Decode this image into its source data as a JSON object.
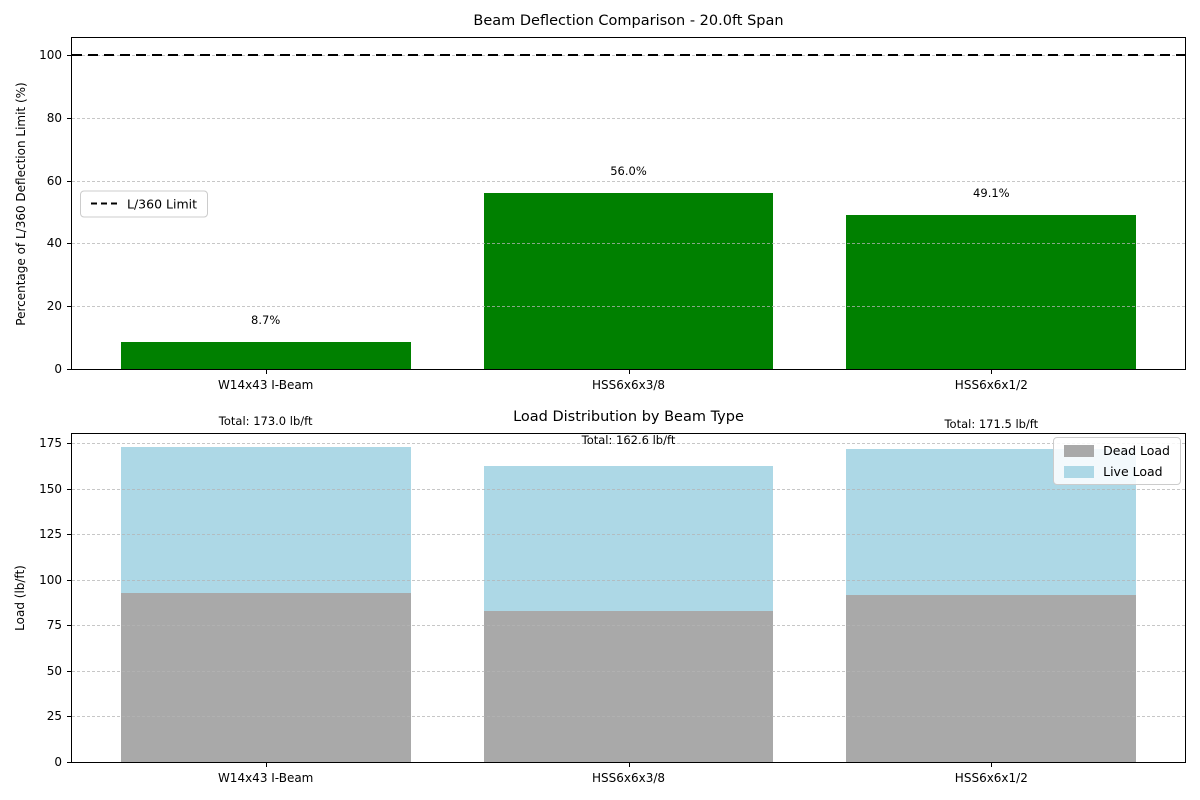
{
  "figure": {
    "background": "#ffffff"
  },
  "chart_data": [
    {
      "type": "bar",
      "title": "Beam Deflection Comparison - 20.0ft Span",
      "ylabel": "Percentage of L/360 Deflection Limit (%)",
      "xlabel": "",
      "categories": [
        "W14x43 I-Beam",
        "HSS6x6x3/8",
        "HSS6x6x1/2"
      ],
      "values": [
        8.7,
        56.0,
        49.1
      ],
      "bar_labels": [
        "8.7%",
        "56.0%",
        "49.1%"
      ],
      "bar_color": "#008000",
      "ylim": [
        0,
        105.4
      ],
      "yticks": [
        0,
        20,
        40,
        60,
        80,
        100
      ],
      "grid": true,
      "grid_style": "dashed",
      "ref_line": {
        "value": 100,
        "color": "#000000",
        "style": "dashed",
        "label": "L/360 Limit"
      },
      "legend": {
        "position": "center-left",
        "entries": [
          {
            "label": "L/360 Limit",
            "swatch": "dashed-line",
            "color": "#000000"
          }
        ]
      }
    },
    {
      "type": "stacked-bar",
      "title": "Load Distribution by Beam Type",
      "ylabel": "Load (lb/ft)",
      "xlabel": "",
      "categories": [
        "W14x43 I-Beam",
        "HSS6x6x3/8",
        "HSS6x6x1/2"
      ],
      "series": [
        {
          "name": "Dead Load",
          "color": "#a9a9a9",
          "values": [
            93.0,
            82.6,
            91.5
          ]
        },
        {
          "name": "Live Load",
          "color": "#add8e6",
          "values": [
            80.0,
            80.0,
            80.0
          ]
        }
      ],
      "totals": [
        173.0,
        162.6,
        171.5
      ],
      "total_labels": [
        "Total: 173.0 lb/ft",
        "Total: 162.6 lb/ft",
        "Total: 171.5 lb/ft"
      ],
      "ylim": [
        0,
        180
      ],
      "yticks": [
        0,
        25,
        50,
        75,
        100,
        125,
        150,
        175
      ],
      "grid": true,
      "grid_style": "dashed",
      "legend": {
        "position": "top-right",
        "entries": [
          {
            "label": "Dead Load",
            "swatch": "box",
            "color": "#a9a9a9"
          },
          {
            "label": "Live Load",
            "swatch": "box",
            "color": "#add8e6"
          }
        ]
      }
    }
  ]
}
